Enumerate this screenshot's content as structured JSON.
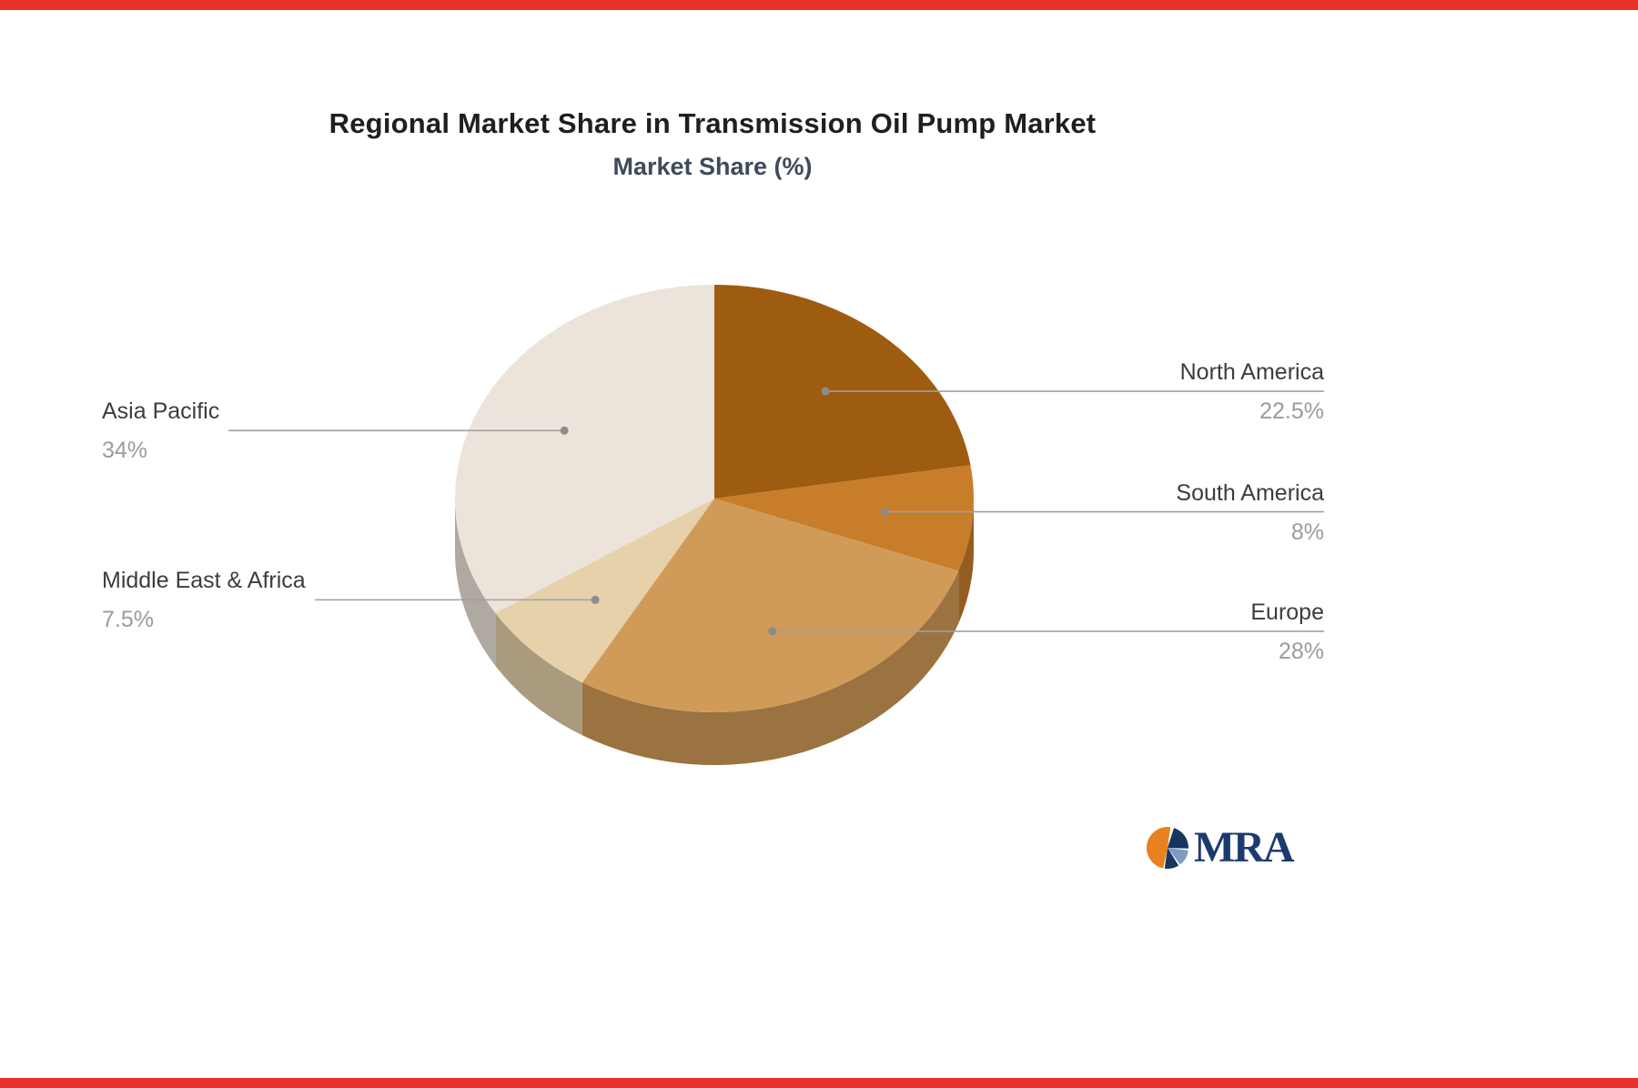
{
  "page": {
    "accent_bar_color": "#e8312a",
    "background": "#ffffff"
  },
  "chart_data": {
    "type": "pie",
    "title": "Regional Market Share in Transmission Oil Pump Market",
    "subtitle": "Market Share (%)",
    "unit": "%",
    "start_angle_deg": 0,
    "direction": "clockwise",
    "legend_position": "none",
    "effect_3d": true,
    "slices": [
      {
        "label": "North America",
        "value": 22.5,
        "display": "22.5%",
        "color": "#9e5c10",
        "side": "right"
      },
      {
        "label": "South America",
        "value": 8,
        "display": "8%",
        "color": "#c87d2b",
        "side": "right"
      },
      {
        "label": "Europe",
        "value": 28,
        "display": "28%",
        "color": "#d09b58",
        "side": "right"
      },
      {
        "label": "Middle East & Africa",
        "value": 7.5,
        "display": "7.5%",
        "color": "#e6d1ab",
        "side": "left"
      },
      {
        "label": "Asia Pacific",
        "value": 34,
        "display": "34%",
        "color": "#ece4da",
        "side": "left"
      }
    ],
    "label_style": {
      "name_color": "#3d3d3d",
      "value_color": "#9b9b9b",
      "line_color": "#a0a0a0",
      "dot_color": "#8c8c8c"
    }
  },
  "logo": {
    "text": "MRA",
    "text_color": "#1c3a6e",
    "icon_colors": {
      "orange": "#e8821e",
      "navy": "#16355f",
      "steel": "#7c9cc0"
    }
  }
}
